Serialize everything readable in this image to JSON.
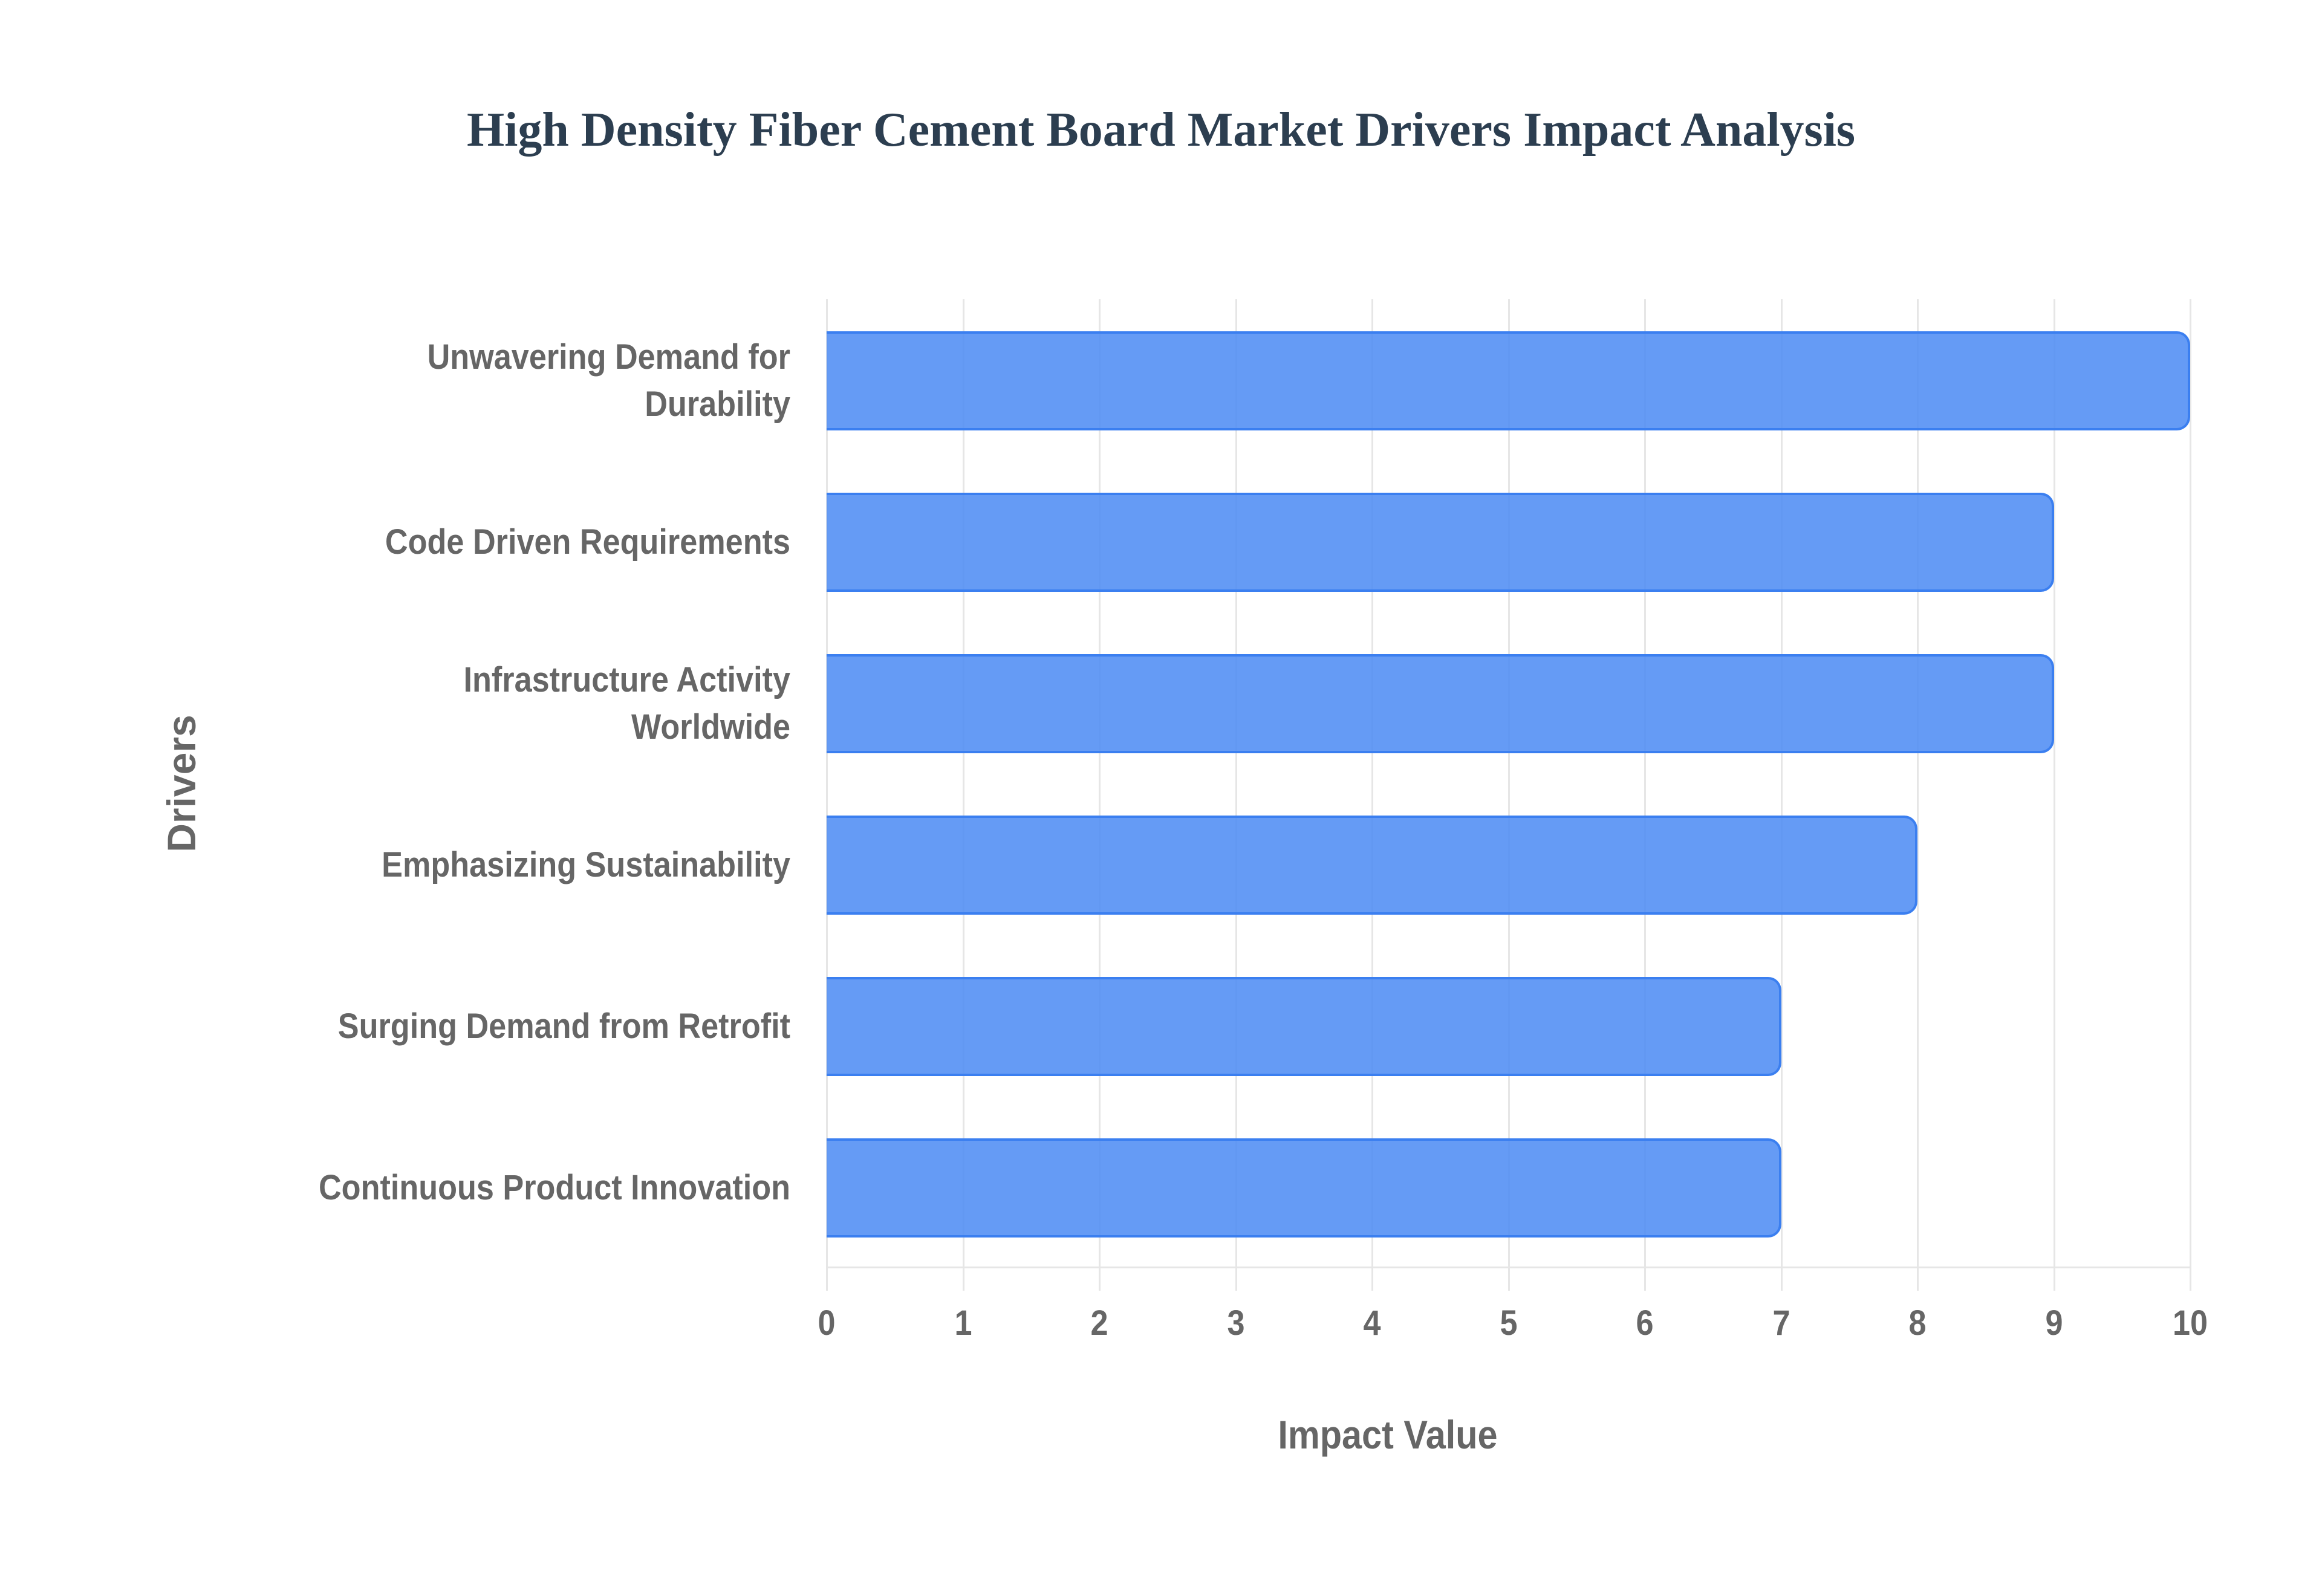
{
  "chart": {
    "title": "High Density Fiber Cement Board Market Drivers Impact Analysis",
    "xlabel": "Impact Value",
    "ylabel": "Drivers",
    "ticks": [
      "0",
      "1",
      "2",
      "3",
      "4",
      "5",
      "6",
      "7",
      "8",
      "9",
      "10"
    ],
    "categories": [
      {
        "line1": "Unwavering Demand for",
        "line2": "Durability",
        "value": 10
      },
      {
        "line1": "Code Driven Requirements",
        "line2": "",
        "value": 9
      },
      {
        "line1": "Infrastructure Activity",
        "line2": "Worldwide",
        "value": 9
      },
      {
        "line1": "Emphasizing Sustainability",
        "line2": "",
        "value": 8
      },
      {
        "line1": "Surging Demand from Retrofit",
        "line2": "",
        "value": 7
      },
      {
        "line1": "Continuous Product Innovation",
        "line2": "",
        "value": 7
      }
    ],
    "colors": {
      "bar_fill": "#5f98f4",
      "bar_border": "#3b7ff0",
      "title": "#2c3e50",
      "axis_text": "#666666",
      "grid": "#e6e6e6"
    }
  },
  "chart_data": {
    "type": "bar",
    "orientation": "horizontal",
    "title": "High Density Fiber Cement Board Market Drivers Impact Analysis",
    "xlabel": "Impact Value",
    "ylabel": "Drivers",
    "categories": [
      "Unwavering Demand for Durability",
      "Code Driven Requirements",
      "Infrastructure Activity Worldwide",
      "Emphasizing Sustainability",
      "Surging Demand from Retrofit",
      "Continuous Product Innovation"
    ],
    "values": [
      10,
      9,
      9,
      8,
      7,
      7
    ],
    "xlim": [
      0,
      10
    ],
    "xticks": [
      0,
      1,
      2,
      3,
      4,
      5,
      6,
      7,
      8,
      9,
      10
    ],
    "grid": true,
    "legend": null
  }
}
